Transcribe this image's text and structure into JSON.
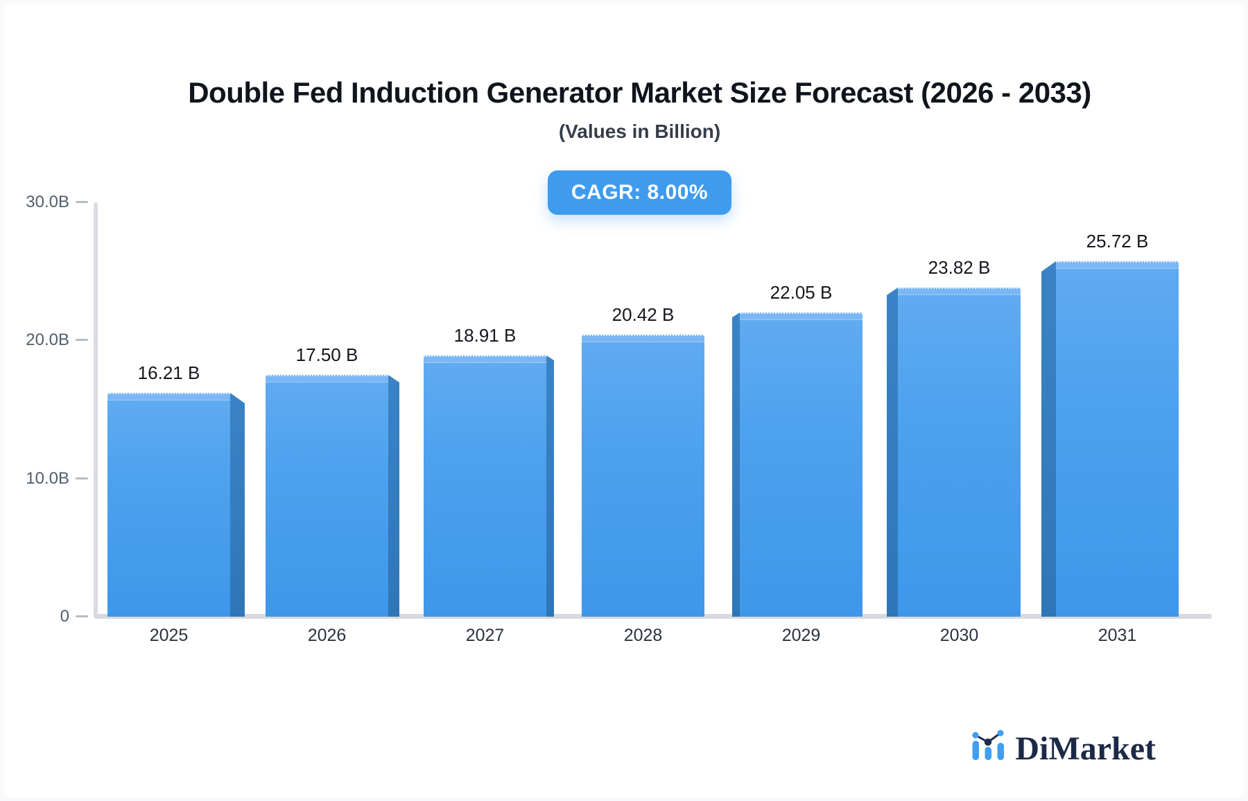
{
  "header": {
    "badge_label": "CAGR: 8.00%"
  },
  "chart_data": {
    "type": "bar",
    "title": "Double Fed Induction Generator Market Size Forecast (2026 - 2033)",
    "subtitle": "(Values in Billion)",
    "cagr": "8.00%",
    "categories": [
      "2025",
      "2026",
      "2027",
      "2028",
      "2029",
      "2030",
      "2031"
    ],
    "values": [
      16.21,
      17.5,
      18.91,
      20.42,
      22.05,
      23.82,
      25.72
    ],
    "value_labels": [
      "16.21 B",
      "17.50 B",
      "18.91 B",
      "20.42 B",
      "22.05 B",
      "23.82 B",
      "25.72 B"
    ],
    "xlabel": "",
    "ylabel": "",
    "ylim": [
      0,
      30
    ],
    "yticks": [
      {
        "value": 30,
        "label": "30.0B"
      },
      {
        "value": 20,
        "label": "20.0B"
      },
      {
        "value": 10,
        "label": "10.0B"
      },
      {
        "value": 0,
        "label": "0"
      }
    ],
    "grid": false,
    "legend": "none",
    "bar_effect": "3d-perspective-to-center",
    "colors": {
      "bar_top": "#61abf1",
      "bar_bottom": "#3f97ea",
      "bar_side": "#2e76b8",
      "badge_bg": "#3f9bed",
      "axis_line": "#d6dade",
      "tick_text": "#525d6b",
      "category_text": "#2b323f",
      "title_text": "#10141c"
    }
  },
  "footer": {
    "brand": "DiMarket"
  }
}
